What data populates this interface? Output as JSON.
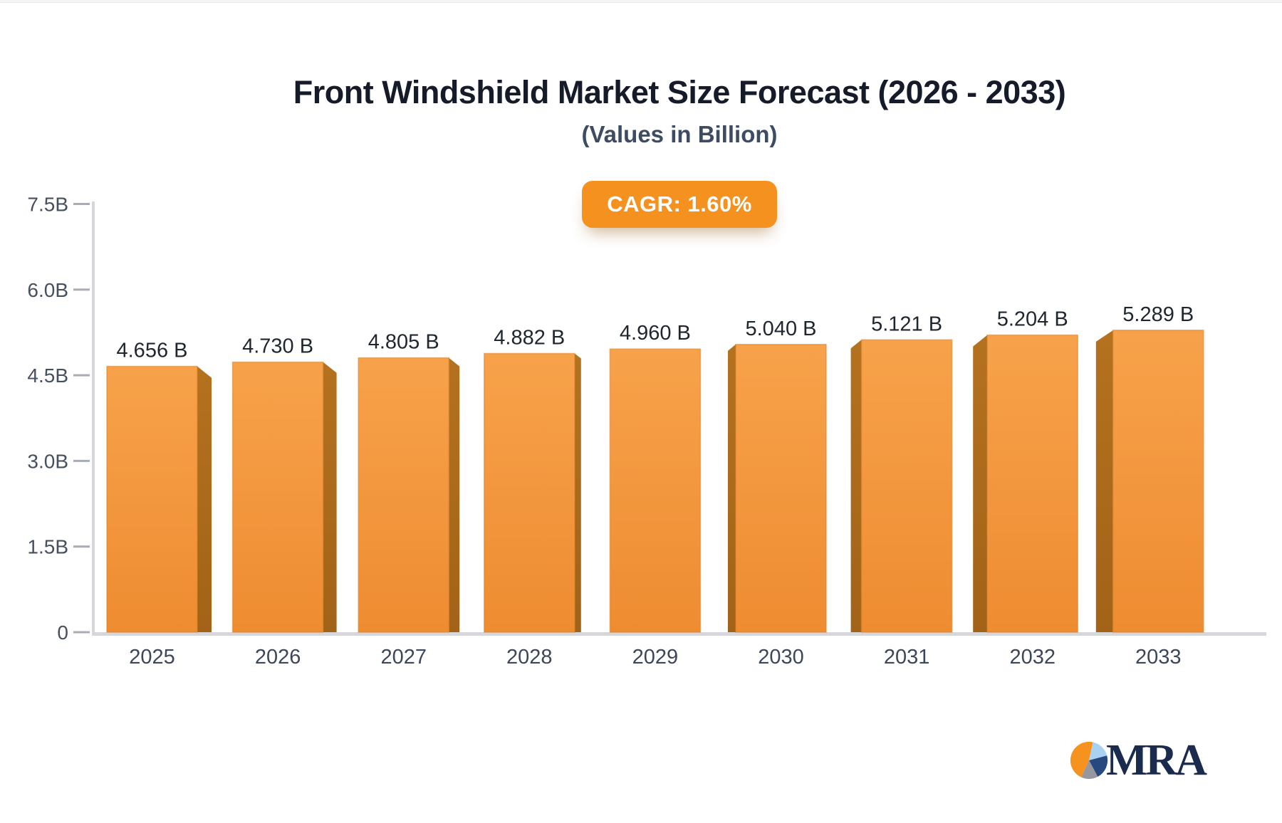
{
  "colors": {
    "title": "#151B28",
    "subtitle": "#3E4C63",
    "badge_bg": "#F5921F",
    "badge_text": "#FFFFFF",
    "bar_face_top": "#F7A24B",
    "bar_face_bottom": "#EE8C31",
    "bar_side_top": "#B4721F",
    "bar_side_bottom": "#A26318",
    "bar_edge": "#DD8226",
    "axis_line": "#D6D7DB",
    "tick_dash": "#A8ACB4",
    "y_tick_text": "#47505F",
    "x_tick_text": "#3C4758",
    "value_text": "#1F2630",
    "logo_text": "#1A2B4E"
  },
  "logo": {
    "text": "MRA",
    "pie": {
      "orange": "#F6921E",
      "light_blue": "#A9D2F2",
      "navy": "#27497F",
      "gray": "#97979F"
    }
  },
  "chart_data": {
    "type": "bar",
    "title": "Front Windshield Market Size Forecast (2026 - 2033)",
    "subtitle": "(Values in Billion)",
    "cagr_label": "CAGR: 1.60%",
    "categories": [
      "2025",
      "2026",
      "2027",
      "2028",
      "2029",
      "2030",
      "2031",
      "2032",
      "2033"
    ],
    "values": [
      4.656,
      4.73,
      4.805,
      4.882,
      4.96,
      5.04,
      5.121,
      5.204,
      5.289
    ],
    "bar_labels": [
      "4.656 B",
      "4.730 B",
      "4.805 B",
      "4.882 B",
      "4.960 B",
      "5.040 B",
      "5.121 B",
      "5.204 B",
      "5.289 B"
    ],
    "y_ticks": [
      {
        "value": 0,
        "label": "0"
      },
      {
        "value": 1.5,
        "label": "1.5B"
      },
      {
        "value": 3.0,
        "label": "3.0B"
      },
      {
        "value": 4.5,
        "label": "4.5B"
      },
      {
        "value": 6.0,
        "label": "6.0B"
      },
      {
        "value": 7.5,
        "label": "7.5B"
      }
    ],
    "ylim": [
      0,
      7.5
    ],
    "xlabel": "",
    "ylabel": "",
    "grid": false,
    "legend_position": "none"
  }
}
